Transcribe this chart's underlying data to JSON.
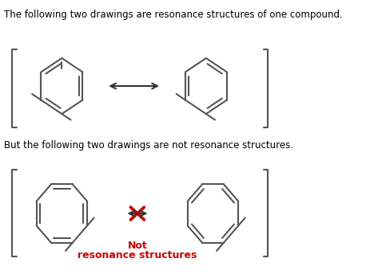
{
  "title_top": "The following two drawings are resonance structures of one compound.",
  "title_bottom": "But the following two drawings are not resonance structures.",
  "label_not": "Not",
  "label_resonance": "resonance structures",
  "text_color": "#000000",
  "red_color": "#cc0000",
  "bond_color": "#555555",
  "bracket_color": "#555555",
  "fig_width": 4.68,
  "fig_height": 3.44,
  "dpi": 100
}
